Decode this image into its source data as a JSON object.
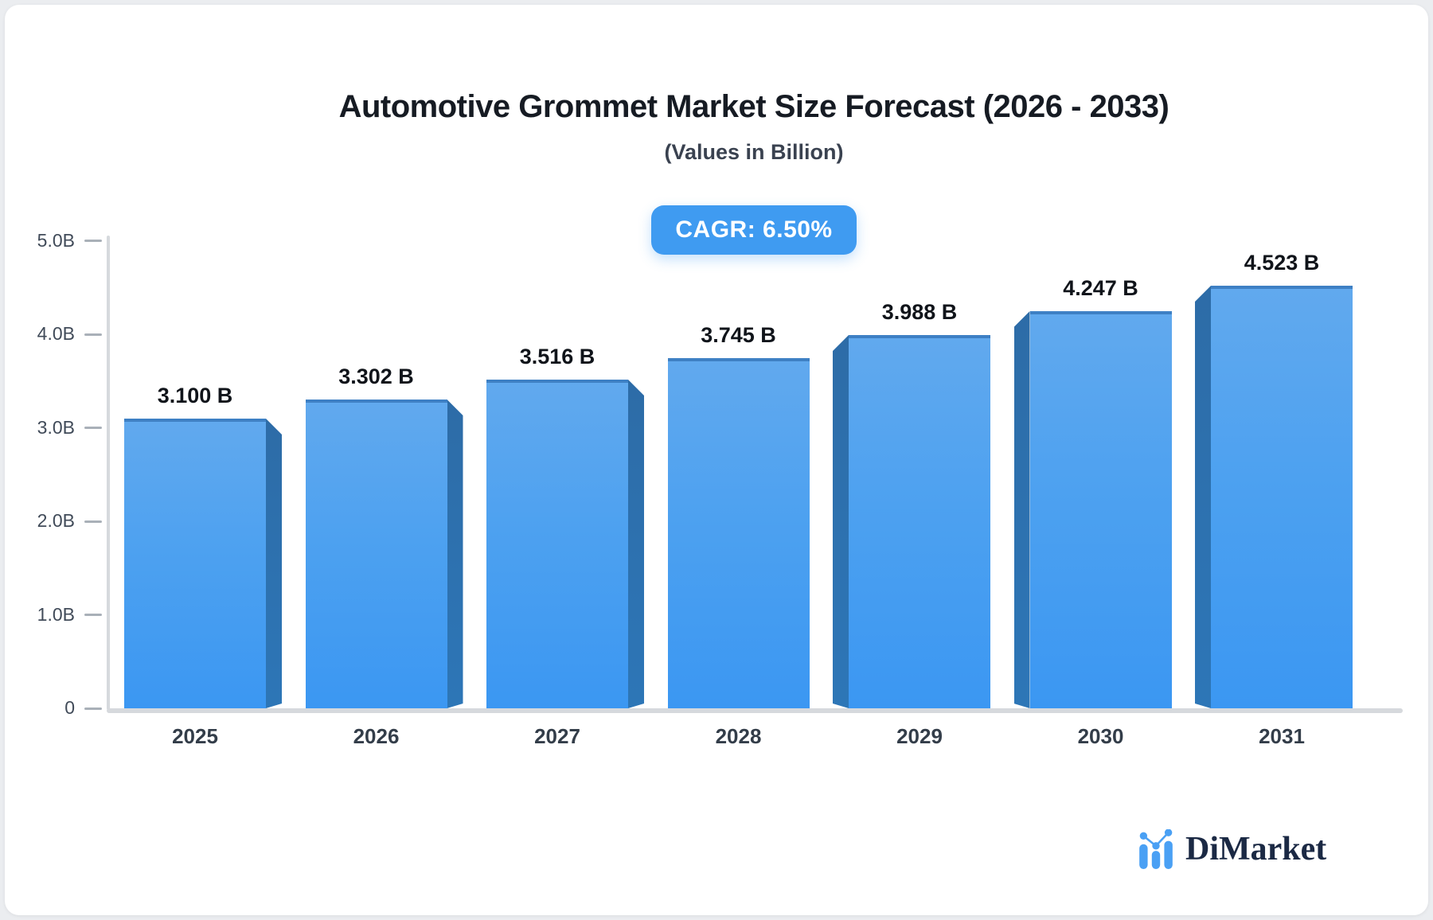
{
  "title": "Automotive Grommet Market Size Forecast (2026 - 2033)",
  "subtitle": "(Values in Billion)",
  "badge": {
    "label": "CAGR: 6.50%"
  },
  "brand": {
    "name": "DiMarket"
  },
  "chart_data": {
    "type": "bar",
    "categories": [
      "2025",
      "2026",
      "2027",
      "2028",
      "2029",
      "2030",
      "2031"
    ],
    "values": [
      3.1,
      3.302,
      3.516,
      3.745,
      3.988,
      4.247,
      4.523
    ],
    "value_labels": [
      "3.100 B",
      "3.302 B",
      "3.516 B",
      "3.745 B",
      "3.988 B",
      "4.247 B",
      "4.523 B"
    ],
    "y_ticks": [
      {
        "label": "5.0B",
        "value": 5
      },
      {
        "label": "4.0B",
        "value": 4
      },
      {
        "label": "3.0B",
        "value": 3
      },
      {
        "label": "2.0B",
        "value": 2
      },
      {
        "label": "1.0B",
        "value": 1
      },
      {
        "label": "0",
        "value": 0
      }
    ],
    "ylim": [
      0,
      5
    ],
    "grid": false,
    "legend": "none",
    "colors": {
      "bar_top": "#61a9ee",
      "bar_bottom": "#3b97f2",
      "bar_top_edge": "#3e80c4",
      "bar_side_face": "#2d74b4",
      "accent_badge": "#3f9bf1",
      "axis_gray": "#d6d9dd",
      "tick_gray": "#a9b0b8",
      "logo_blue": "#4aa0f4",
      "logo_navy": "#1b2944"
    }
  }
}
